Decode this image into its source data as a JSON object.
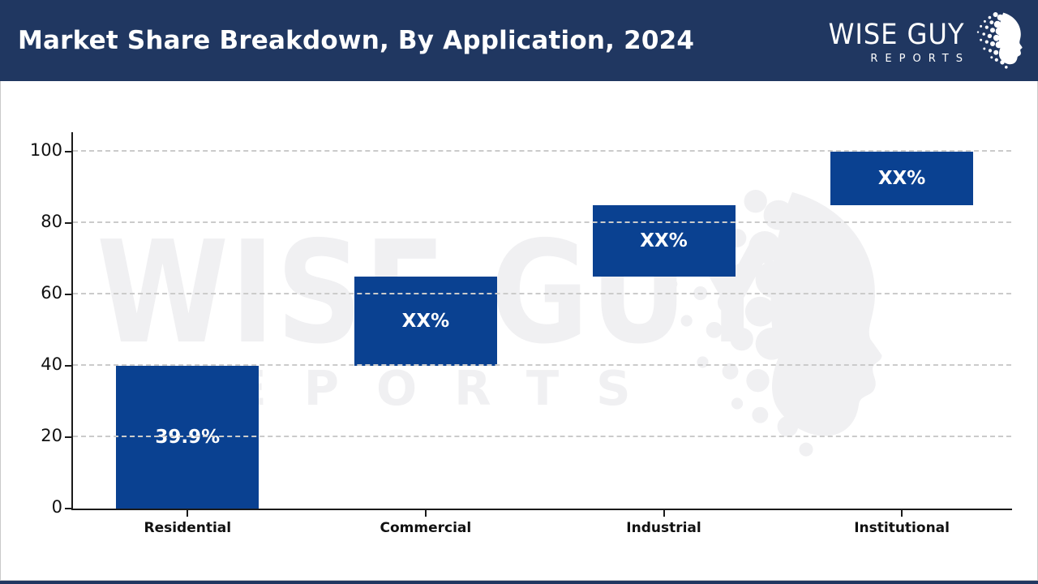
{
  "header": {
    "title": "Market Share Breakdown, By Application, 2024",
    "bg_color": "#203761",
    "logo": {
      "line1": "WISE GUY",
      "line2": "REPORTS"
    }
  },
  "watermark": {
    "line1": "WISE GUY",
    "line2": "REPORTS"
  },
  "chart_data": {
    "type": "bar",
    "subtype": "waterfall",
    "title": "Market Share Breakdown, By Application, 2024",
    "categories": [
      "Residential",
      "Commercial",
      "Industrial",
      "Institutional"
    ],
    "series": [
      {
        "name": "Market Share (%)",
        "segments": [
          {
            "category": "Residential",
            "start": 0,
            "end": 39.9,
            "label": "39.9%"
          },
          {
            "category": "Commercial",
            "start": 40,
            "end": 65,
            "label": "XX%"
          },
          {
            "category": "Industrial",
            "start": 65,
            "end": 85,
            "label": "XX%"
          },
          {
            "category": "Institutional",
            "start": 85,
            "end": 100,
            "label": "XX%"
          }
        ]
      }
    ],
    "xlabel": "",
    "ylabel": "",
    "ylim": [
      0,
      100
    ],
    "yticks": [
      0,
      20,
      40,
      60,
      80,
      100
    ],
    "grid": "horizontal-dashed",
    "legend": "none",
    "bar_color": "#0a4191",
    "bar_label_color": "#ffffff"
  }
}
